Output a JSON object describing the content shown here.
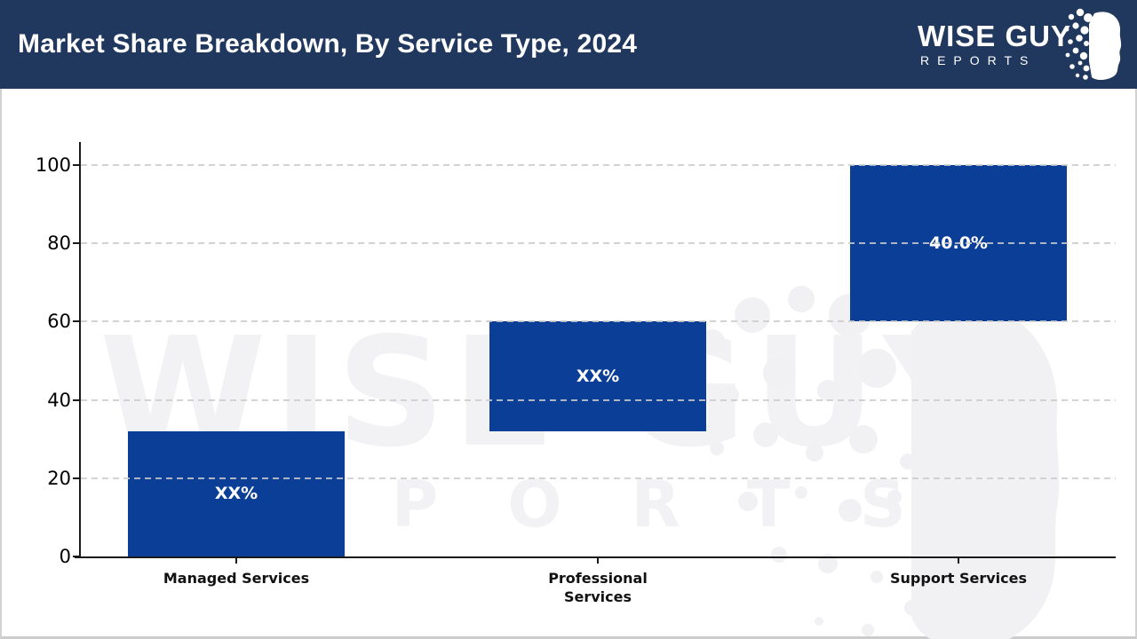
{
  "header": {
    "title": "Market Share Breakdown, By Service Type, 2024",
    "logo": {
      "brand": "WISE GUY",
      "reports": "REPORTS"
    }
  },
  "watermark": {
    "brand": "WISE GUY",
    "reports": "REPORTS"
  },
  "chart_data": {
    "type": "bar",
    "subtype": "waterfall-breakdown",
    "title": "Market Share Breakdown, By Service Type, 2024",
    "categories": [
      "Managed Services",
      "Professional\nServices",
      "Support Services"
    ],
    "series": [
      {
        "name": "Managed Services",
        "start": 0,
        "end": 32,
        "value_label": "XX%"
      },
      {
        "name": "Professional Services",
        "start": 32,
        "end": 60,
        "value_label": "XX%"
      },
      {
        "name": "Support Services",
        "start": 60,
        "end": 100,
        "value_label": "40.0%"
      }
    ],
    "xlabel": "",
    "ylabel": "",
    "ylim": [
      0,
      100
    ],
    "yticks": [
      0,
      20,
      40,
      60,
      80,
      100
    ],
    "grid": "horizontal-dashed",
    "legend": "none",
    "bar_color": "#0b3e96",
    "bar_label_color": "#ffffff"
  },
  "colors": {
    "header_background": "#21385e",
    "bar_blue": "#0b3e96",
    "watermark_gray": "#f2f2f5",
    "page_border_gray": "#d2d2d2",
    "axis_black": "#1a1a1a"
  }
}
